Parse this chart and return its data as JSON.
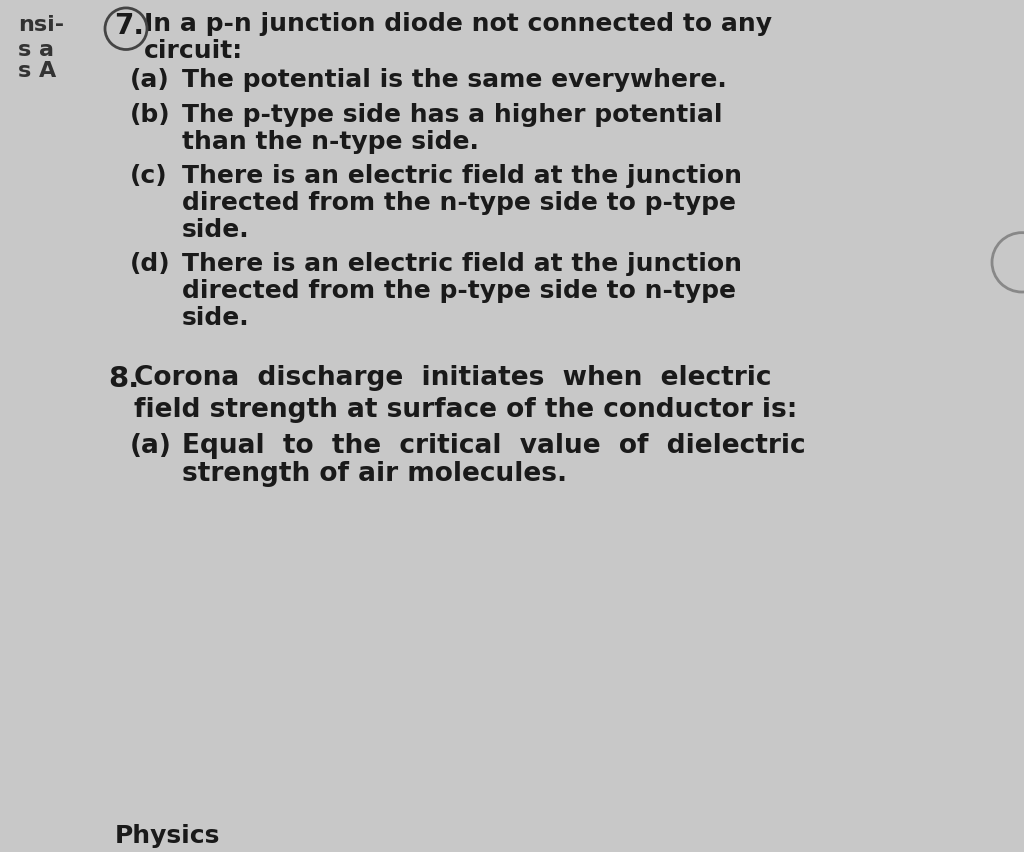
{
  "background_color": "#d4d4d4",
  "page_background": "#c8c8c8",
  "left_margin_text": [
    "nsi-",
    "s a",
    "s A"
  ],
  "left_margin_color": "#333333",
  "question_7_lines": [
    "In a p-n junction diode not connected to any",
    "circuit:"
  ],
  "question_7_options": [
    {
      "label": "(a)",
      "lines": [
        "The potential is the same everywhere."
      ]
    },
    {
      "label": "(b)",
      "lines": [
        "The p-type side has a higher potential",
        "than the n-type side."
      ]
    },
    {
      "label": "(c)",
      "lines": [
        "There is an electric field at the junction",
        "directed from the n-type side to p-type",
        "side."
      ]
    },
    {
      "label": "(d)",
      "lines": [
        "There is an electric field at the junction",
        "directed from the p-type side to n-type",
        "side."
      ]
    }
  ],
  "question_8_lines": [
    "Corona  discharge  initiates  when  electric",
    "field strength at surface of the conductor is:"
  ],
  "question_8_options": [
    {
      "label": "(a)",
      "lines": [
        "Equal  to  the  critical  value  of  dielectric",
        "strength of air molecules."
      ]
    }
  ],
  "bottom_text": "Physics",
  "text_color": "#1a1a1a",
  "font_size_main": 18,
  "font_size_q8": 19,
  "font_size_margin": 16
}
